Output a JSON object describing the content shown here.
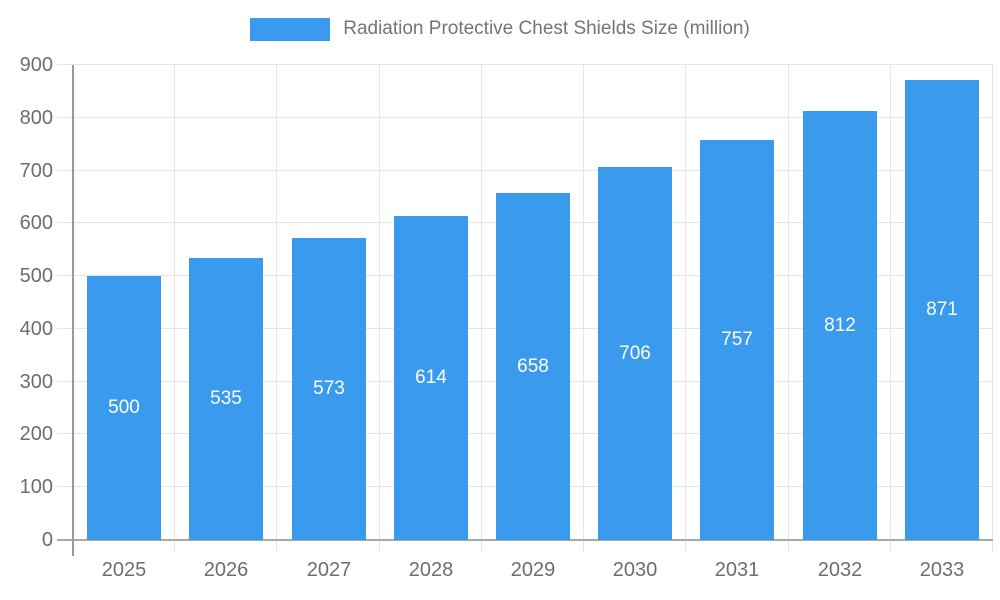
{
  "legend": {
    "label": "Radiation Protective Chest Shields Size (million)"
  },
  "chart_data": {
    "type": "bar",
    "title": "Radiation Protective Chest Shields Size (million)",
    "categories": [
      "2025",
      "2026",
      "2027",
      "2028",
      "2029",
      "2030",
      "2031",
      "2032",
      "2033"
    ],
    "values": [
      500,
      535,
      573,
      614,
      658,
      706,
      757,
      812,
      871
    ],
    "xlabel": "",
    "ylabel": "",
    "ylim": [
      0,
      900
    ],
    "ytick_step": 100,
    "ytick_labels": [
      "0",
      "100",
      "200",
      "300",
      "400",
      "500",
      "600",
      "700",
      "800",
      "900"
    ],
    "grid": true,
    "legend_position": "top-center",
    "bar_value_labels_inside": true,
    "colors": {
      "bar": "#3a9aee",
      "grid": "#e6e6e6",
      "axis": "#999999",
      "baseline": "#a8a8a8",
      "text": "#6e6e6e",
      "legend_text": "#757575",
      "bar_label": "#ffffff",
      "background": "#ffffff"
    }
  }
}
